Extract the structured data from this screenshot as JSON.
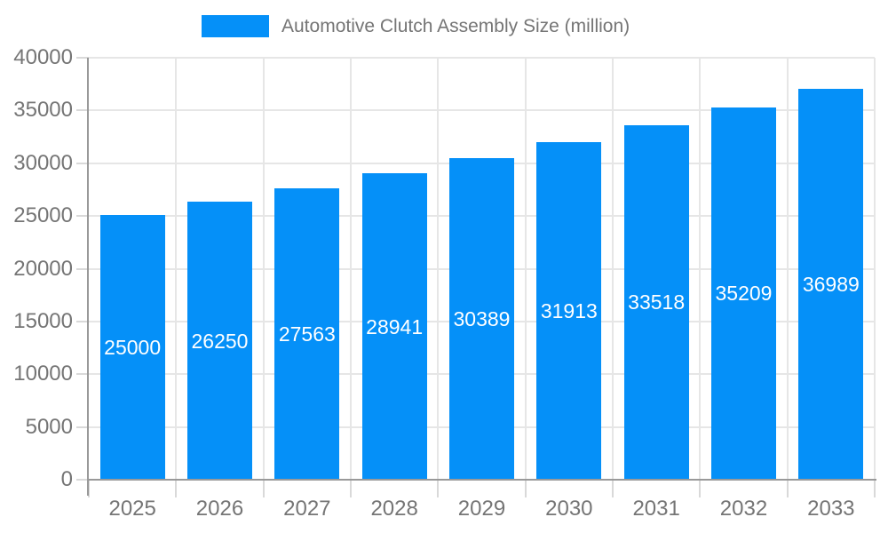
{
  "page": {
    "background": "#ffffff"
  },
  "legend": {
    "label": "Automotive Clutch Assembly Size (million)",
    "position": "top"
  },
  "chart_data": {
    "type": "bar",
    "title": "Automotive Clutch Assembly Size (million)",
    "series_name": "Automotive Clutch Assembly Size (million)",
    "categories": [
      "2025",
      "2026",
      "2027",
      "2028",
      "2029",
      "2030",
      "2031",
      "2032",
      "2033"
    ],
    "values": [
      25000,
      26250,
      27563,
      28941,
      30389,
      31913,
      33518,
      35209,
      36989
    ],
    "xlabel": "",
    "ylabel": "",
    "ylim": [
      0,
      40000
    ],
    "y_ticks": [
      0,
      5000,
      10000,
      15000,
      20000,
      25000,
      30000,
      35000,
      40000
    ],
    "grid": true,
    "legend_position": "top",
    "bar_color": "#0590f8",
    "bar_label_color": "#ffffff",
    "grid_color": "#e6e6e6",
    "tick_color": "#d9d9d9",
    "axis_color": "#999999",
    "text_color": "#757575"
  }
}
